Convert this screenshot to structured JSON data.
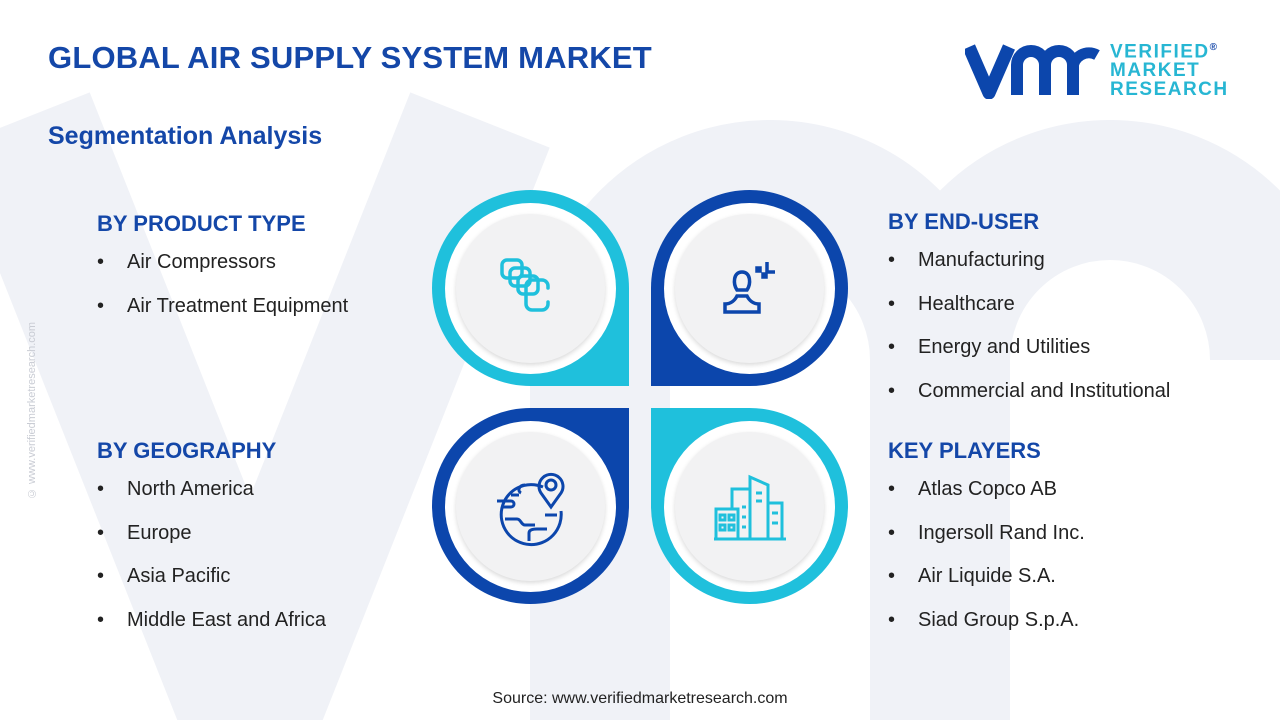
{
  "title": "GLOBAL AIR SUPPLY SYSTEM MARKET",
  "subtitle": "Segmentation Analysis",
  "logo": {
    "mark": "vmr",
    "line1": "VERIFIED",
    "line2": "MARKET",
    "line3": "RESEARCH",
    "registered": "®"
  },
  "side_watermark": "© www.verifiedmarketresearch.com",
  "colors": {
    "dark_blue": "#0c46ac",
    "cyan": "#1fc0dc",
    "title": "#1447a8"
  },
  "segments": [
    {
      "heading": "BY PRODUCT TYPE",
      "icon": "compressor-chain-icon",
      "items": [
        "Air Compressors",
        "Air Treatment Equipment"
      ]
    },
    {
      "heading": "BY END-USER",
      "icon": "user-icon",
      "items": [
        "Manufacturing",
        "Healthcare",
        "Energy and Utilities",
        "Commercial and Institutional"
      ]
    },
    {
      "heading": "BY GEOGRAPHY",
      "icon": "globe-pin-icon",
      "items": [
        "North America",
        "Europe",
        "Asia Pacific",
        "Middle East and Africa"
      ]
    },
    {
      "heading": "KEY PLAYERS",
      "icon": "buildings-icon",
      "items": [
        "Atlas Copco AB",
        "Ingersoll Rand Inc.",
        "Air Liquide S.A.",
        "Siad Group S.p.A."
      ]
    }
  ],
  "bullet": "•",
  "source": "Source: www.verifiedmarketresearch.com"
}
